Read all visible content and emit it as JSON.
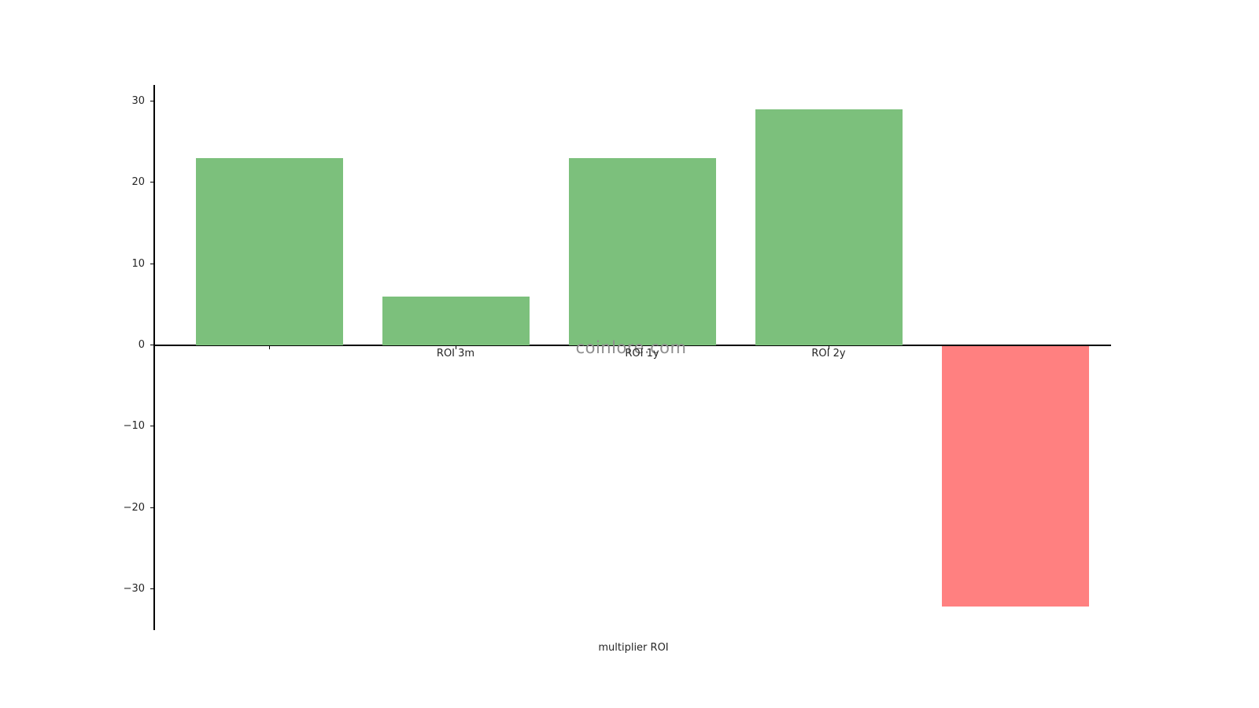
{
  "chart_data": {
    "type": "bar",
    "categories": [
      "",
      "ROI 3m",
      "ROI 1y",
      "ROI 2y",
      ""
    ],
    "values": [
      23,
      6,
      23,
      29,
      -32
    ],
    "bar_colors": [
      "#7cc07c",
      "#7cc07c",
      "#7cc07c",
      "#7cc07c",
      "#ff8080"
    ],
    "title": "",
    "xlabel": "multiplier ROI",
    "ylabel": "",
    "ylim": [
      -35.05,
      32.05
    ],
    "yticks": [
      30,
      20,
      10,
      0,
      -10,
      -20,
      -30
    ],
    "grid": false,
    "legend": "none",
    "zero_line_axis": true,
    "axis_color": "#000000",
    "tick_label_color": "#262626"
  },
  "watermark": {
    "text": "coinlore.com",
    "color": "#8f8f8f"
  }
}
